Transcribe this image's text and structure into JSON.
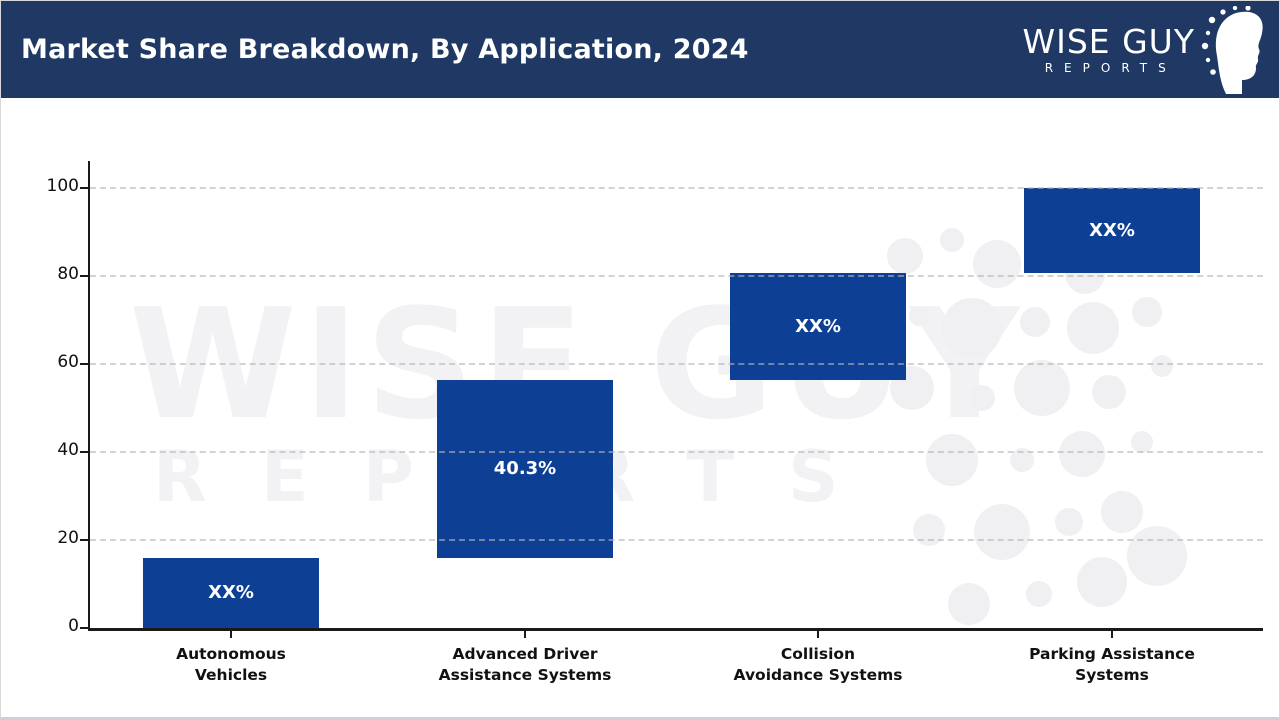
{
  "header": {
    "title": "Market Share Breakdown, By Application, 2024",
    "logo": {
      "name": "WISE GUY",
      "sub": "REPORTS"
    }
  },
  "watermark": {
    "line1": "WISE GUY",
    "line2": "REPORTS"
  },
  "chart_data": {
    "type": "bar",
    "subtype": "waterfall-stacked-segments",
    "title": "Market Share Breakdown, By Application, 2024",
    "categories": [
      {
        "lines": [
          "Autonomous",
          "Vehicles"
        ]
      },
      {
        "lines": [
          "Advanced Driver",
          "Assistance Systems"
        ]
      },
      {
        "lines": [
          "Collision",
          "Avoidance Systems"
        ]
      },
      {
        "lines": [
          "Parking Assistance",
          "Systems"
        ]
      }
    ],
    "bars": [
      {
        "label": "XX%",
        "start": 0,
        "end": 16.0
      },
      {
        "label": "40.3%",
        "start": 16.0,
        "end": 56.3
      },
      {
        "label": "XX%",
        "start": 56.3,
        "end": 80.6
      },
      {
        "label": "XX%",
        "start": 80.6,
        "end": 100.0
      }
    ],
    "ylim": [
      0,
      100
    ],
    "yticks": [
      0,
      20,
      40,
      60,
      80,
      100
    ],
    "xlabel": "",
    "ylabel": "",
    "legend": "none",
    "grid": {
      "axis": "y",
      "style": "dashed",
      "drawn_over_bars": true
    },
    "colors": {
      "bar": "#0d4094",
      "bar_label": "#ffffff",
      "axis": "#1a1a1a",
      "gridline": "#d9d9d9",
      "header_bg": "#1f3864",
      "watermark": "#f2f2f4"
    }
  }
}
